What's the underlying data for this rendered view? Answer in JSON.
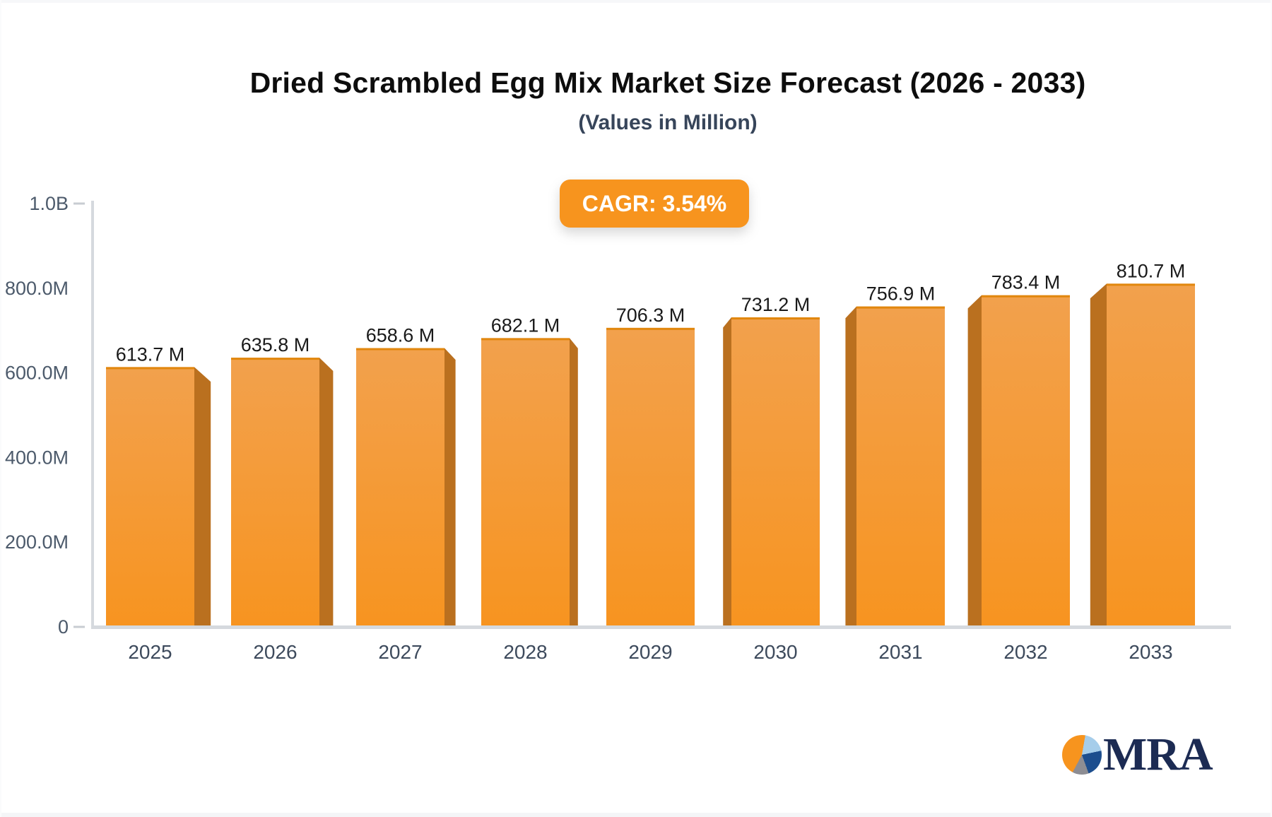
{
  "header": {
    "title": "Dried Scrambled Egg Mix Market Size Forecast (2026 - 2033)",
    "subtitle": "(Values in Million)",
    "badge": "CAGR: 3.54%"
  },
  "logo": {
    "text": "MRA",
    "pie_icon_colors": [
      "#f7941e",
      "#a6cdea",
      "#1d4e8e",
      "#8d8d93"
    ]
  },
  "colors": {
    "accent_orange": "#f7941e",
    "bar_face_top": "#f2a14d",
    "bar_face_bottom": "#f79420",
    "bar_side": "#ba701f",
    "bar_top_edge": "#e1870e",
    "axis_line": "#d5d9de",
    "tick_dash": "#c8ccd2",
    "tick_label": "#4c5a6b",
    "year_label": "#3d4a5c",
    "value_label": "#1a1a1a"
  },
  "chart_data": {
    "type": "bar",
    "title": "Dried Scrambled Egg Mix Market Size Forecast (2026 - 2033)",
    "subtitle": "(Values in Million)",
    "annotation": "CAGR: 3.54%",
    "categories": [
      "2025",
      "2026",
      "2027",
      "2028",
      "2029",
      "2030",
      "2031",
      "2032",
      "2033"
    ],
    "values": [
      613.7,
      635.8,
      658.6,
      682.1,
      706.3,
      731.2,
      756.9,
      783.4,
      810.7
    ],
    "value_labels": [
      "613.7 M",
      "635.8 M",
      "658.6 M",
      "682.1 M",
      "706.3 M",
      "731.2 M",
      "756.9 M",
      "783.4 M",
      "810.7 M"
    ],
    "unit": "Million USD",
    "xlabel": "",
    "ylabel": "",
    "ylim": [
      0,
      1000
    ],
    "y_ticks": {
      "values": [
        0,
        200,
        400,
        600,
        800,
        1000
      ],
      "labels": [
        "0",
        "200.0M",
        "400.0M",
        "600.0M",
        "800.0M",
        "1.0B"
      ]
    },
    "grid": false,
    "legend": null,
    "style": "3d-perspective-bars"
  }
}
